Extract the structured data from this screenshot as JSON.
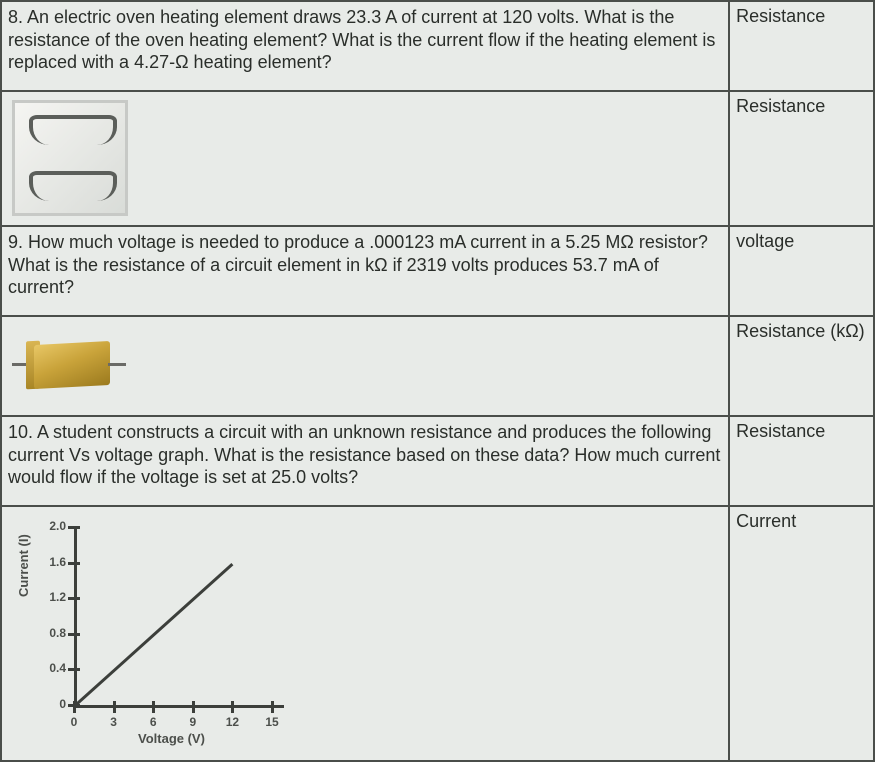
{
  "q8": {
    "text": "8.  An electric oven heating element draws 23.3 A of current  at 120 volts. What is the resistance of the oven heating element?  What is the current flow if the heating element is replaced with a 4.27-Ω heating element?",
    "answer1_label": "Resistance",
    "answer2_label": "Resistance"
  },
  "q9": {
    "text": "9.  How much voltage is needed to produce a .000123 mA current in a 5.25 MΩ resistor?  What is the resistance of a circuit element in kΩ if 2319 volts produces 53.7 mA of current?",
    "answer1_label": "voltage",
    "answer2_label": "Resistance (kΩ)"
  },
  "q10": {
    "text": "10.  A student constructs a circuit with an unknown resistance and produces the following current Vs voltage graph.  What is the resistance based on these data?  How much current would flow if the voltage is set at 25.0 volts?",
    "answer1_label": "Resistance",
    "answer2_label": "Current"
  },
  "graph": {
    "type": "line",
    "x_label": "Voltage (V)",
    "y_label": "Current (I)",
    "x_ticks": [
      0,
      3,
      6,
      9,
      12,
      15
    ],
    "y_ticks": [
      0,
      0.4,
      0.8,
      1.2,
      1.6,
      2.0
    ],
    "y_tick_labels": [
      "0",
      "0.4",
      "0.8",
      "1.2",
      "1.6",
      "2.0"
    ],
    "xlim": [
      0,
      15
    ],
    "ylim": [
      0,
      2.0
    ],
    "line_points": [
      [
        0,
        0
      ],
      [
        12,
        1.6
      ]
    ],
    "axis_color": "#3c3f3b",
    "line_color": "#3c3f3b",
    "background_color": "#e8ebe8",
    "font_size": 12
  },
  "colors": {
    "page_bg": "#e8ebe8",
    "border": "#4a4e4a",
    "text": "#2a2e2a"
  }
}
